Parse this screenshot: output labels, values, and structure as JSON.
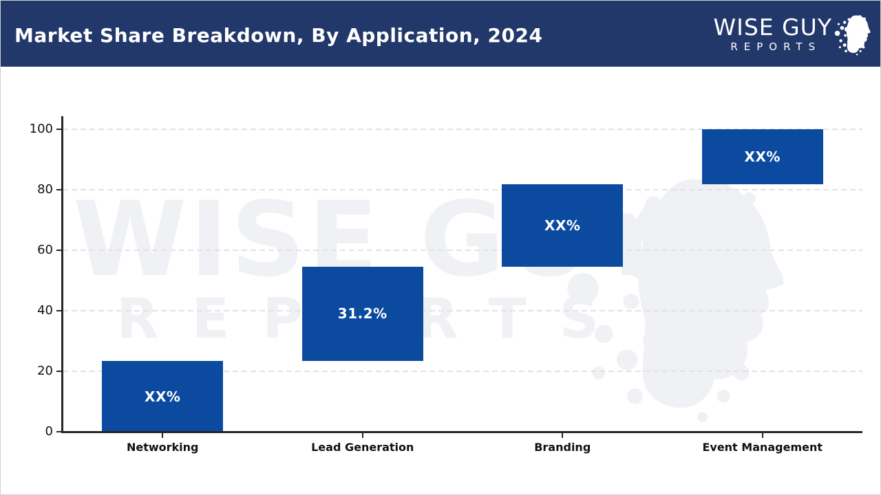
{
  "header": {
    "title": "Market Share Breakdown, By Application, 2024"
  },
  "brand": {
    "name": "WISE GUY",
    "subtitle": "REPORTS"
  },
  "watermark": {
    "line1": "WISE GUY",
    "line2": "REPORTS"
  },
  "chart_data": {
    "type": "bar",
    "subtype": "waterfall",
    "title": "Market Share Breakdown, By Application, 2024",
    "categories": [
      "Networking",
      "Lead Generation",
      "Branding",
      "Event Management"
    ],
    "segments": [
      {
        "category": "Networking",
        "start": 0,
        "end": 23.4,
        "value": 23.4,
        "label": "XX%"
      },
      {
        "category": "Lead Generation",
        "start": 23.4,
        "end": 54.6,
        "value": 31.2,
        "label": "31.2%"
      },
      {
        "category": "Branding",
        "start": 54.6,
        "end": 81.8,
        "value": 27.2,
        "label": "XX%"
      },
      {
        "category": "Event Management",
        "start": 81.8,
        "end": 100,
        "value": 18.2,
        "label": "XX%"
      }
    ],
    "xlabel": "",
    "ylabel": "",
    "ylim": [
      0,
      100
    ],
    "yticks": [
      0,
      20,
      40,
      60,
      80,
      100
    ],
    "grid": "horizontal-dashed",
    "legend": "none",
    "bar_color": "#0b4a9f",
    "label_color": "#ffffff"
  },
  "colors": {
    "header_bg": "#22386a",
    "bar": "#0b4a9f",
    "watermark": "#f0f1f4",
    "axis": "#262626",
    "grid": "#e2e2e2",
    "page_border": "#d2d2d2",
    "title_text": "#ffffff",
    "tick_text": "#111111"
  }
}
